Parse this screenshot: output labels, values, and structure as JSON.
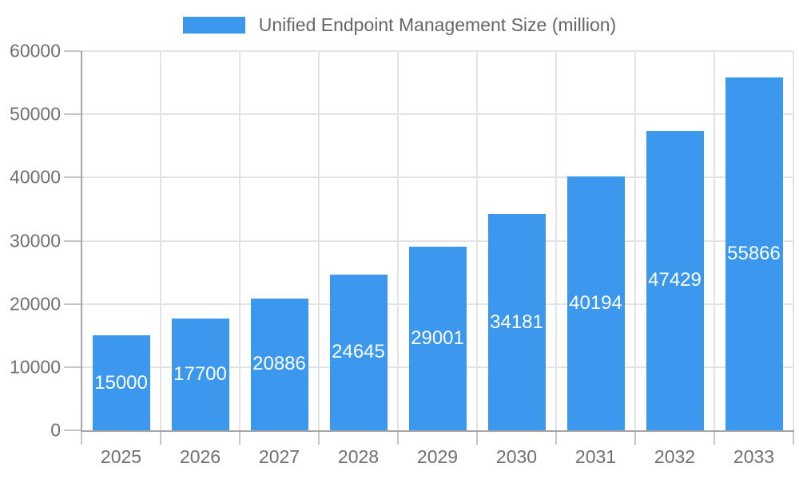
{
  "legend": {
    "label": "Unified Endpoint Management Size (million)"
  },
  "chart_data": {
    "type": "bar",
    "title": "Unified Endpoint Management Size (million)",
    "categories": [
      "2025",
      "2026",
      "2027",
      "2028",
      "2029",
      "2030",
      "2031",
      "2032",
      "2033"
    ],
    "series": [
      {
        "name": "Unified Endpoint Management Size (million)",
        "values": [
          15000,
          17700,
          20886,
          24645,
          29001,
          34181,
          40194,
          47429,
          55866
        ]
      }
    ],
    "xlabel": "",
    "ylabel": "",
    "ylim": [
      0,
      60000
    ],
    "yticks": [
      0,
      10000,
      20000,
      30000,
      40000,
      50000,
      60000
    ],
    "grid": true,
    "legend_position": "top",
    "bar_value_labels": "inside-center"
  },
  "colors": {
    "bar": "#3B98EC",
    "bar_label": "#FFFFFF",
    "grid_line": "#E4E4E4",
    "axis_line": "#A6A6A6",
    "tick": "#C6C6C6",
    "axis_text": "#707070",
    "legend_text": "#666666",
    "background": "#FFFFFF"
  }
}
